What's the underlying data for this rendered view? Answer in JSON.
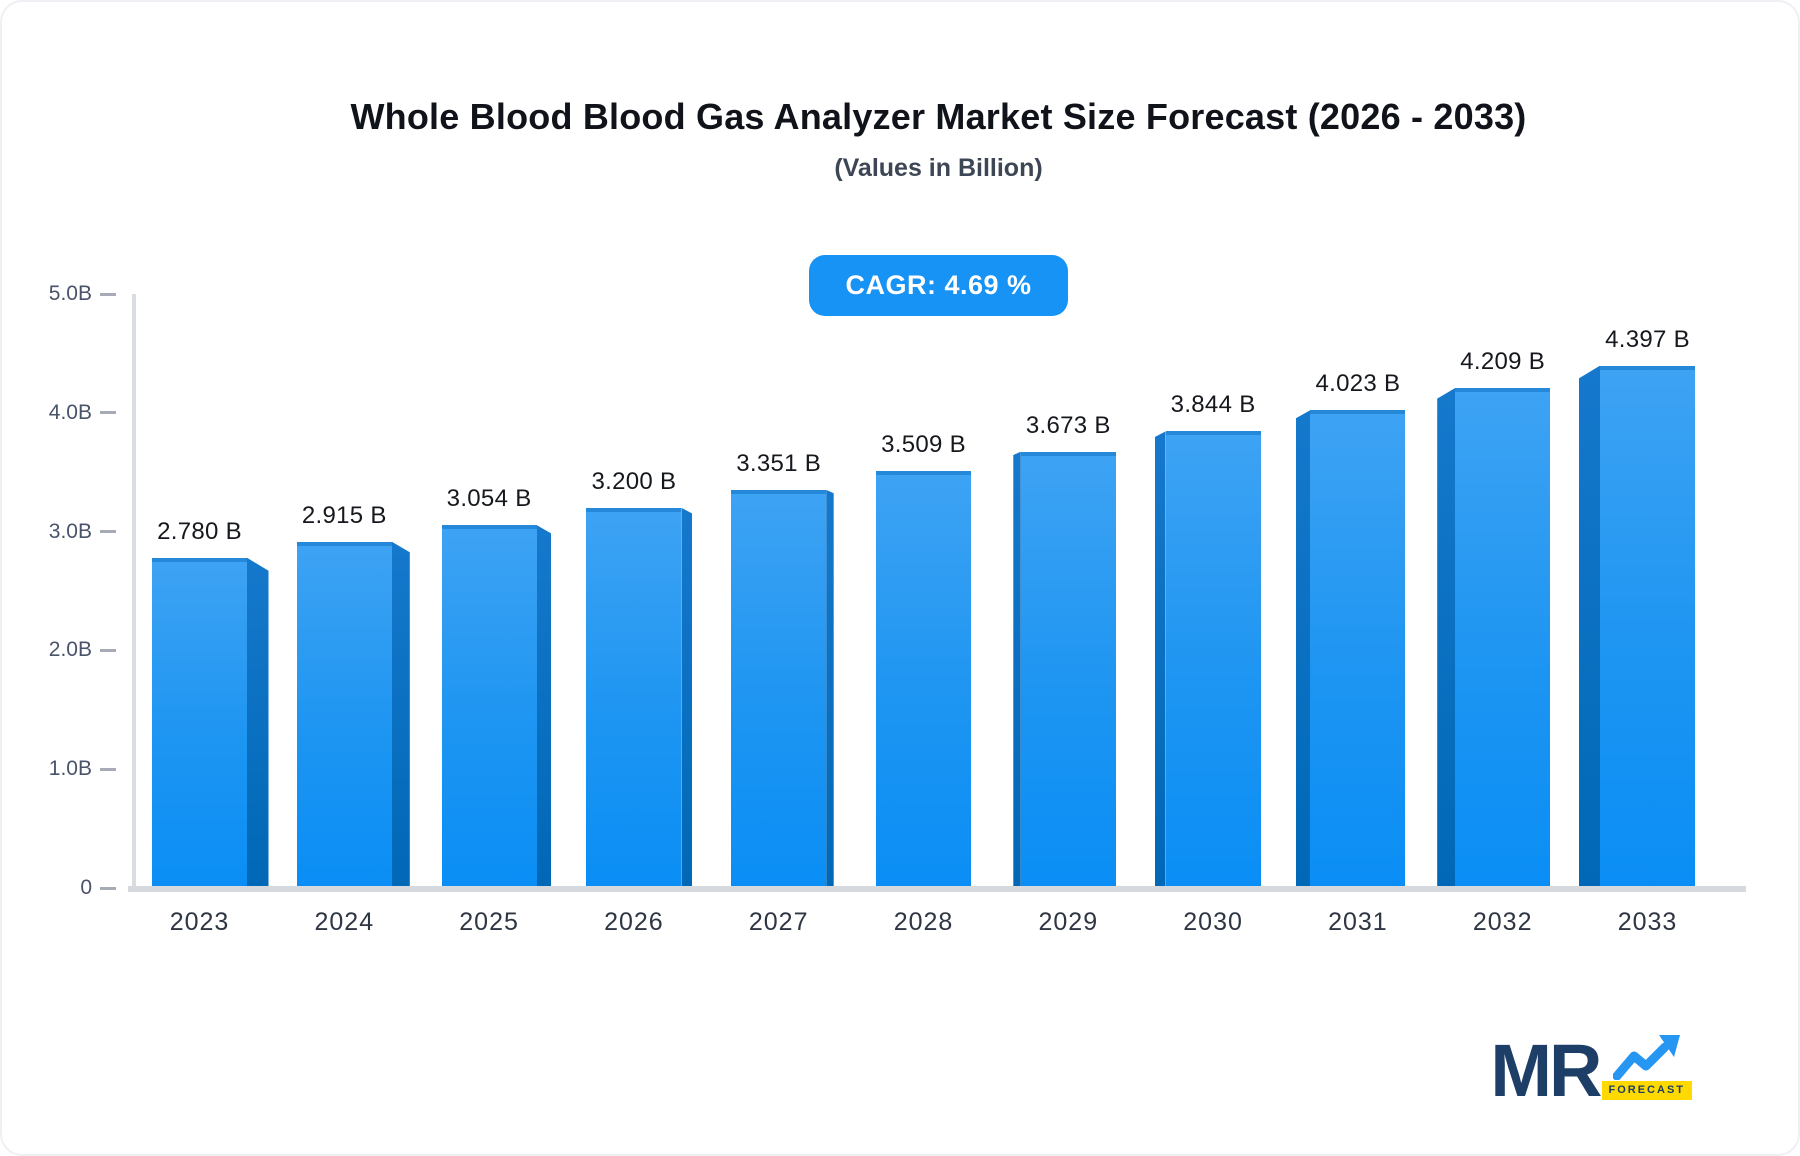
{
  "title": "Whole Blood Blood Gas Analyzer Market Size Forecast (2026 - 2033)",
  "subtitle": "(Values in Billion)",
  "badge": {
    "label": "CAGR: 4.69 %"
  },
  "chart_data": {
    "type": "bar",
    "title": "Whole Blood Blood Gas Analyzer Market Size Forecast (2026 - 2033)",
    "subtitle": "(Values in Billion)",
    "cagr_percent": 4.69,
    "categories": [
      "2023",
      "2024",
      "2025",
      "2026",
      "2027",
      "2028",
      "2029",
      "2030",
      "2031",
      "2032",
      "2033"
    ],
    "values": [
      2.78,
      2.915,
      3.054,
      3.2,
      3.351,
      3.509,
      3.673,
      3.844,
      4.023,
      4.209,
      4.397
    ],
    "value_labels": [
      "2.780 B",
      "2.915 B",
      "3.054 B",
      "3.200 B",
      "3.351 B",
      "3.509 B",
      "3.673 B",
      "3.844 B",
      "4.023 B",
      "4.209 B",
      "4.397 B"
    ],
    "xlabel": "",
    "ylabel": "",
    "ylim": [
      0,
      5
    ],
    "y_ticks": [
      {
        "value": 0,
        "label": "0"
      },
      {
        "value": 1,
        "label": "1.0B"
      },
      {
        "value": 2,
        "label": "2.0B"
      },
      {
        "value": 3,
        "label": "3.0B"
      },
      {
        "value": 4,
        "label": "4.0B"
      },
      {
        "value": 5,
        "label": "5.0B"
      }
    ],
    "grid": false,
    "legend_position": "none",
    "bar_style": "3d-perspective, center vanishing point"
  },
  "colors": {
    "bar_face_top": "#3ea3f3",
    "bar_face_bottom": "#0a8ef5",
    "bar_side_top": "#1578cc",
    "bar_side_bottom": "#0068b6",
    "badge_bg": "#1792f5",
    "badge_text": "#ffffff",
    "axis_line": "#d6d9de",
    "tick_label": "#49536a",
    "value_label": "#15181d",
    "logo_navy": "#1d3e66",
    "logo_yellow": "#ffd900",
    "logo_arrow_blue": "#2596f2"
  },
  "logo": {
    "mr": "MR",
    "forecast": "FORECAST"
  }
}
